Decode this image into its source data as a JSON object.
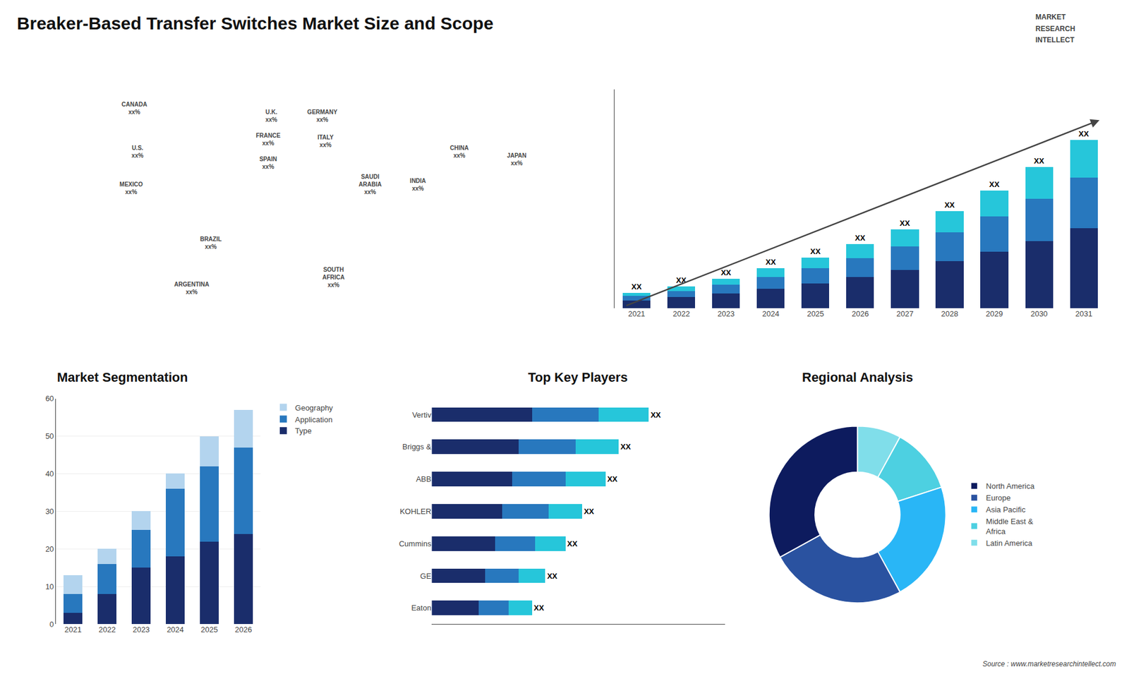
{
  "chart_data": [
    {
      "type": "bar",
      "title": "Breaker-Based Transfer Switches Market Size and Scope",
      "annotations": [
        "MARKET",
        "RESEARCH",
        "INTELLECT",
        "Source : www.marketresearchintellect.com"
      ],
      "stacked": true,
      "categories": [
        "2021",
        "2022",
        "2023",
        "2024",
        "2025",
        "2026",
        "2027",
        "2028",
        "2029",
        "2030",
        "2031"
      ],
      "series": [
        {
          "color": "#1a2d6b",
          "values": [
            1.0,
            1.4,
            1.9,
            2.5,
            3.2,
            4.0,
            4.9,
            6.0,
            7.2,
            8.6,
            10.2
          ]
        },
        {
          "color": "#2878be",
          "values": [
            0.6,
            0.8,
            1.1,
            1.5,
            1.9,
            2.4,
            3.0,
            3.7,
            4.5,
            5.4,
            6.5
          ]
        },
        {
          "color": "#26c6da",
          "values": [
            0.4,
            0.6,
            0.8,
            1.1,
            1.4,
            1.8,
            2.2,
            2.7,
            3.3,
            4.0,
            4.8
          ],
          "value_labels": [
            "XX",
            "XX",
            "XX",
            "XX",
            "XX",
            "XX",
            "XX",
            "XX",
            "XX",
            "XX",
            "XX"
          ]
        }
      ],
      "data_labels": true,
      "ylim": [
        0,
        27.95
      ],
      "tick_labels": "x",
      "grid": false
    },
    {
      "type": "map",
      "categories": [
        "CANADA\nxx%",
        "U.S.\nxx%",
        "MEXICO\nxx%",
        "BRAZIL\nxx%",
        "ARGENTINA\nxx%",
        "U.K.\nxx%",
        "FRANCE\nxx%",
        "SPAIN\nxx%",
        "GERMANY\nxx%",
        "ITALY\nxx%",
        "SAUDI\nARABIA\nxx%",
        "SOUTH\nAFRICA\nxx%",
        "CHINA\nxx%",
        "INDIA\nxx%",
        "JAPAN\nxx%"
      ]
    },
    {
      "type": "bar",
      "title": "Market Segmentation",
      "stacked": true,
      "categories": [
        "2021",
        "2022",
        "2023",
        "2024",
        "2025",
        "2026"
      ],
      "series": [
        {
          "name": "Type",
          "color": "#1a2d6b",
          "values": [
            3,
            8,
            15,
            18,
            22,
            24
          ]
        },
        {
          "name": "Application",
          "color": "#2878be",
          "values": [
            5,
            8,
            10,
            18,
            20,
            23
          ]
        },
        {
          "name": "Geography",
          "color": "#b3d4ee",
          "values": [
            5,
            4,
            5,
            4,
            8,
            10
          ]
        }
      ],
      "ylim": [
        0,
        60
      ],
      "yticks": [
        0,
        10,
        20,
        30,
        40,
        50,
        60
      ],
      "grid": true,
      "legend": "upper right"
    },
    {
      "type": "bar",
      "title": "Top Key Players",
      "orientation": "horizontal",
      "stacked": true,
      "categories": [
        "Vertiv",
        "Briggs &",
        "ABB",
        "KOHLER",
        "Cummins",
        "GE",
        "Eaton"
      ],
      "series": [
        {
          "color": "#1a2d6b",
          "values": [
            3.0,
            2.6,
            2.4,
            2.1,
            1.9,
            1.6,
            1.4
          ]
        },
        {
          "color": "#2878be",
          "values": [
            2.0,
            1.7,
            1.6,
            1.4,
            1.2,
            1.0,
            0.9
          ]
        },
        {
          "color": "#26c6da",
          "values": [
            1.5,
            1.3,
            1.2,
            1.0,
            0.9,
            0.8,
            0.7
          ],
          "value_labels": [
            "XX",
            "XX",
            "XX",
            "XX",
            "XX",
            "XX",
            "XX"
          ]
        }
      ],
      "data_labels": true,
      "xlim": [
        0,
        8.775
      ],
      "tick_labels": "y",
      "grid": false
    },
    {
      "type": "pie",
      "title": "Regional Analysis",
      "categories": [
        "Latin America",
        "Middle East &\nAfrica",
        "Asia Pacific",
        "Europe",
        "North America"
      ],
      "values": [
        8,
        12,
        22,
        25,
        33
      ],
      "colors": [
        "#80deea",
        "#4dd0e1",
        "#29b6f6",
        "#2a52a0",
        "#0d1b5e"
      ],
      "legend": "right"
    }
  ]
}
